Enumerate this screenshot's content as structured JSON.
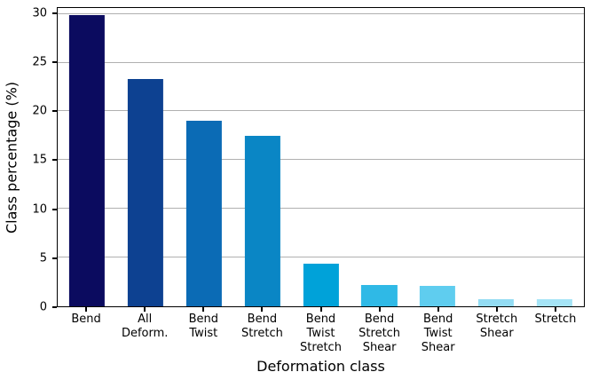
{
  "figure": {
    "background": "#ffffff",
    "axis_color": "#000000"
  },
  "chart_data": {
    "type": "bar",
    "title": "",
    "xlabel": "Deformation class",
    "ylabel": "Class percentage (%)",
    "categories": [
      "Bend",
      "All\nDeform.",
      "Bend\nTwist",
      "Bend\nStretch",
      "Bend\nTwist\nStretch",
      "Bend\nStretch\nShear",
      "Bend\nTwist\nShear",
      "Stretch\nShear",
      "Stretch"
    ],
    "values": [
      29.9,
      23.3,
      19.0,
      17.5,
      4.4,
      2.2,
      2.1,
      0.7,
      0.7
    ],
    "bar_colors": [
      "#0b0b5f",
      "#0d4191",
      "#0b6bb5",
      "#0a86c5",
      "#00a2d9",
      "#2fb9e6",
      "#5fcdef",
      "#93dcf3",
      "#a5e4f6"
    ],
    "y_ticks": [
      0,
      5,
      10,
      15,
      20,
      25,
      30
    ],
    "ylim": [
      0,
      30.6
    ],
    "grid": "horizontal",
    "gridline_color": "#b0b0b0",
    "legend": "none"
  }
}
